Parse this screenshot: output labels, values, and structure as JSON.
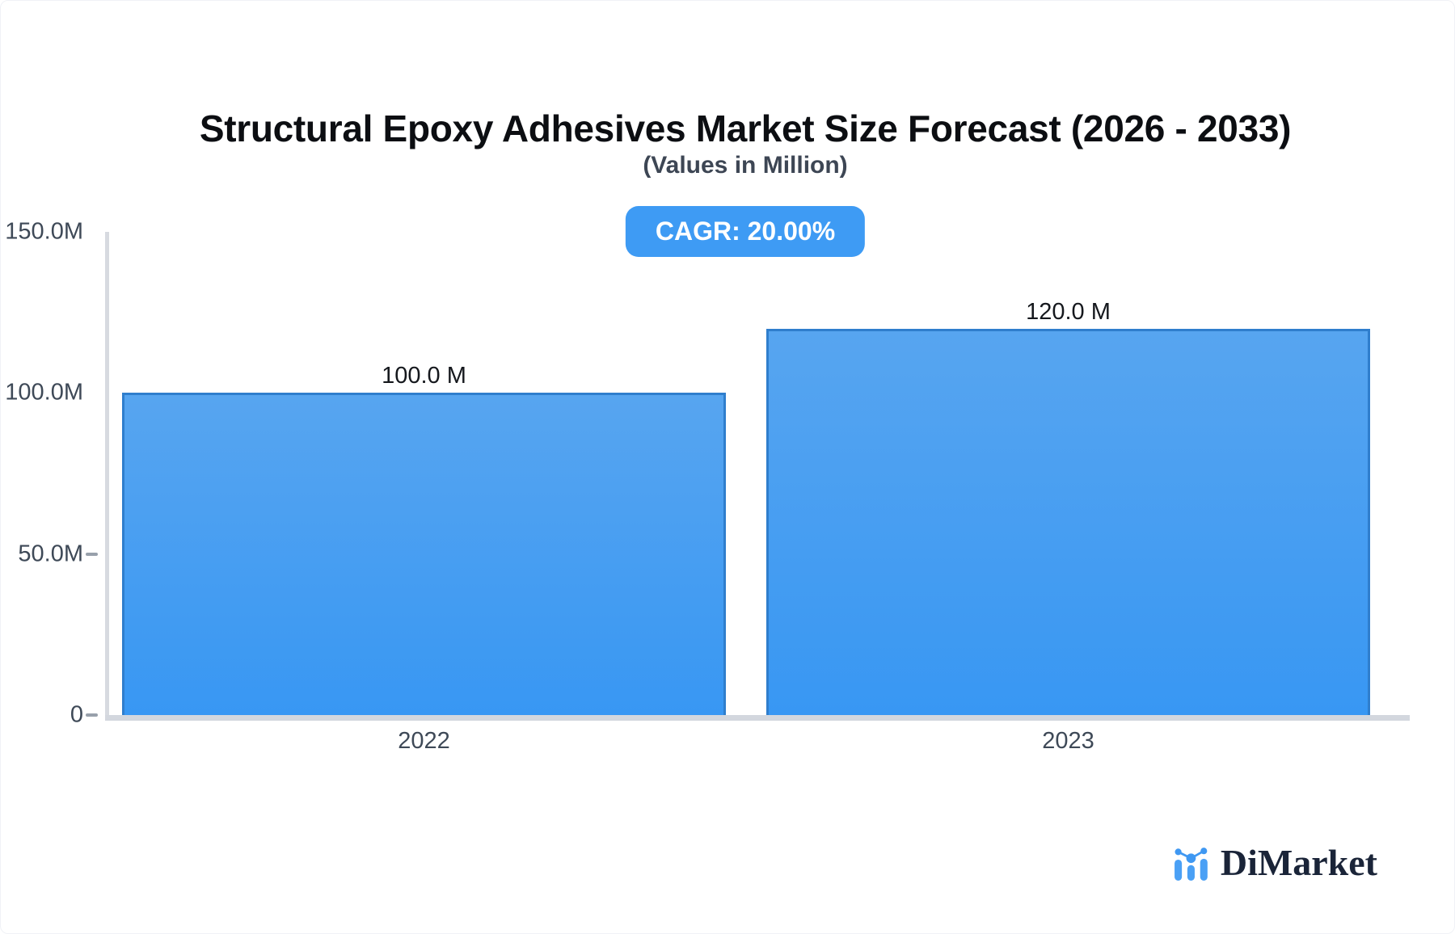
{
  "header": {
    "title": "Structural Epoxy Adhesives Market Size Forecast (2026 - 2033)",
    "subtitle": "(Values in Million)",
    "cagr_label": "CAGR: 20.00%"
  },
  "brand": {
    "name": "DiMarket",
    "icon": "bar-chart-logo-icon"
  },
  "colors": {
    "accent_blue": "#3E9BF4",
    "bar_fill_top": "#57A5F0",
    "bar_fill_bottom": "#3897F3",
    "bar_border": "#2F7ECD",
    "axis_line": "#D7DAE0",
    "tick_dash": "#98A0AB",
    "axis_label": "#3E4957",
    "logo_navy": "#1A2438"
  },
  "chart_data": {
    "type": "bar",
    "title": "Structural Epoxy Adhesives Market Size Forecast (2026 - 2033)",
    "subtitle": "(Values in Million)",
    "cagr_percent": 20.0,
    "categories": [
      "2022",
      "2023"
    ],
    "values": [
      100.0,
      120.0
    ],
    "bar_labels": [
      "100.0 M",
      "120.0 M"
    ],
    "unit": "Million",
    "ylim": [
      0,
      150
    ],
    "y_ticks": [
      {
        "label": "150.0M",
        "value": 150,
        "dash": false
      },
      {
        "label": "100.0M",
        "value": 100,
        "dash": false
      },
      {
        "label": "50.0M",
        "value": 50,
        "dash": true
      },
      {
        "label": "0",
        "value": 0,
        "dash": true
      }
    ],
    "grid": false,
    "legend": false
  }
}
